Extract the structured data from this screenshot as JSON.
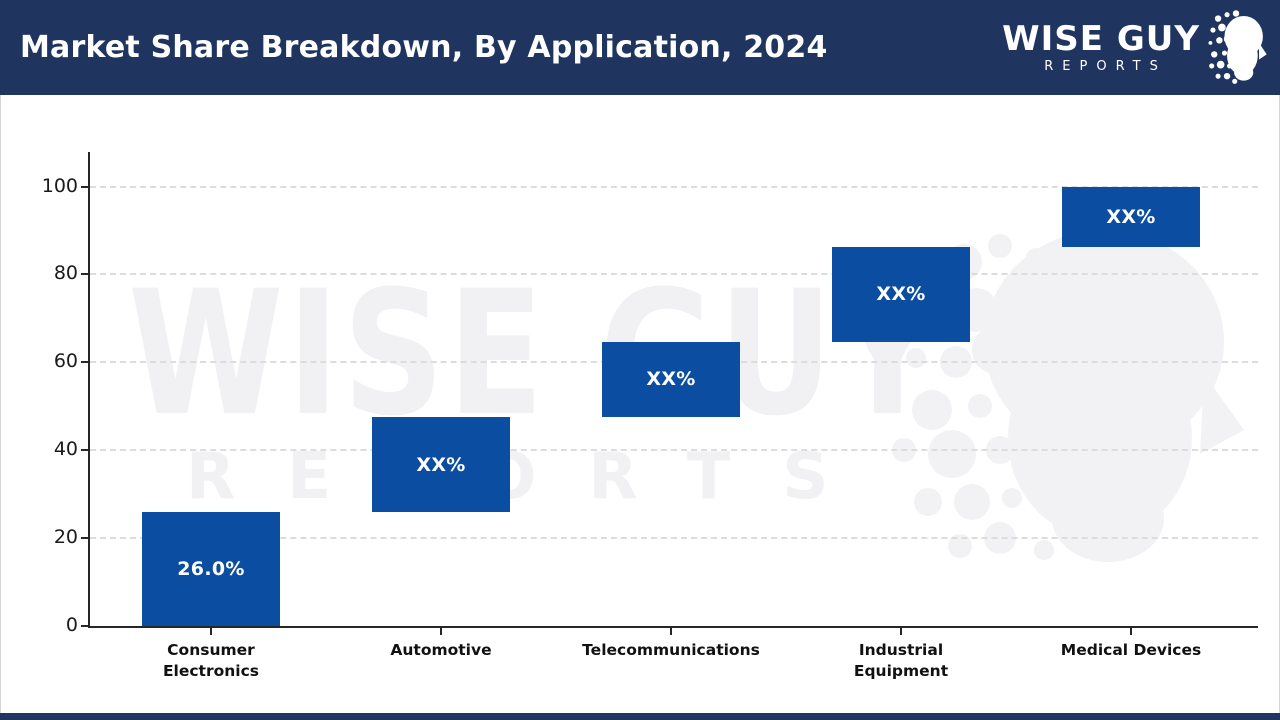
{
  "header": {
    "title": "Market Share Breakdown, By Application, 2024",
    "logo": {
      "name": "WISE GUY",
      "sub": "REPORTS"
    }
  },
  "watermark": {
    "primary": "WISE GUY",
    "secondary": "REPORTS"
  },
  "colors": {
    "header_bg": "#1f3560",
    "footer_bg": "#1f3560",
    "bar": "#0a4da1",
    "bar_label": "#ffffff",
    "axis": "#262626",
    "grid": "#dcdcdc",
    "tick_label": "#1a1a1a",
    "watermark": "#f1f1f3"
  },
  "chart_data": {
    "type": "bar",
    "subtype": "waterfall",
    "title": "Market Share Breakdown, By Application, 2024",
    "categories": [
      "Consumer Electronics",
      "Automotive",
      "Telecommunications",
      "Industrial Equipment",
      "Medical Devices"
    ],
    "category_label_lines": [
      [
        "Consumer",
        "Electronics"
      ],
      [
        "Automotive"
      ],
      [
        "Telecommunications"
      ],
      [
        "Industrial",
        "Equipment"
      ],
      [
        "Medical Devices"
      ]
    ],
    "segments": [
      {
        "category": "Consumer Electronics",
        "start": 0,
        "end": 26,
        "label": "26.0%"
      },
      {
        "category": "Automotive",
        "start": 26,
        "end": 47.5,
        "label": "XX%"
      },
      {
        "category": "Telecommunications",
        "start": 47.5,
        "end": 64.7,
        "label": "XX%"
      },
      {
        "category": "Industrial Equipment",
        "start": 64.7,
        "end": 86.3,
        "label": "XX%"
      },
      {
        "category": "Medical Devices",
        "start": 86.3,
        "end": 100,
        "label": "XX%"
      }
    ],
    "ylim": [
      0,
      100
    ],
    "yticks": [
      0,
      20,
      40,
      60,
      80,
      100
    ],
    "xlabel": "",
    "ylabel": "",
    "grid": "dashed-horizontal",
    "legend": "none"
  }
}
